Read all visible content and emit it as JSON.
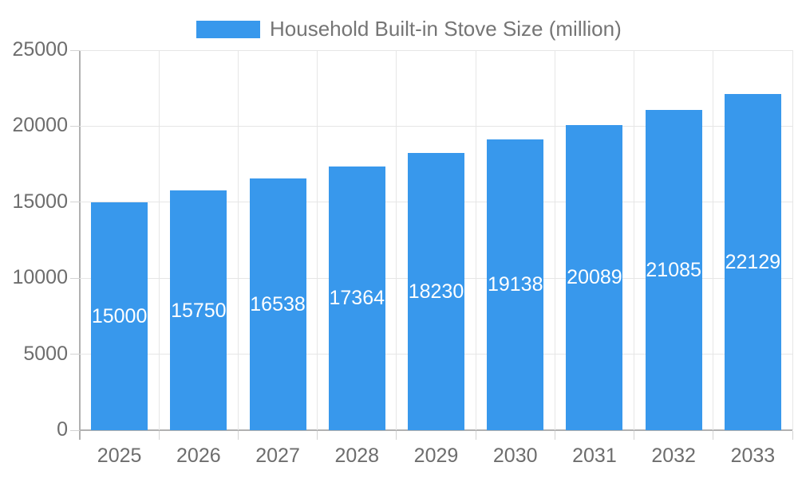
{
  "legend": {
    "label": "Household Built-in Stove Size (million)"
  },
  "colors": {
    "bar": "#3898EC",
    "bar_label_text": "#ffffff",
    "grid_line": "#e6e6e6",
    "axis_line": "#b1b1b1",
    "tick_mark": "#d3d3d3",
    "tick_label_text": "#6d6d6d",
    "legend_text": "#757575",
    "background": "#ffffff"
  },
  "chart_data": {
    "type": "bar",
    "title": "Household Built-in Stove Size (million)",
    "categories": [
      "2025",
      "2026",
      "2027",
      "2028",
      "2029",
      "2030",
      "2031",
      "2032",
      "2033"
    ],
    "series": [
      {
        "name": "Household Built-in Stove Size (million)",
        "values": [
          15000,
          15750,
          16538,
          17364,
          18230,
          19138,
          20089,
          21085,
          22129
        ]
      }
    ],
    "values": [
      15000,
      15750,
      16538,
      17364,
      18230,
      19138,
      20089,
      21085,
      22129
    ],
    "value_labels": [
      "15000",
      "15750",
      "16538",
      "17364",
      "18230",
      "19138",
      "20089",
      "21085",
      "22129"
    ],
    "xlabel": "",
    "ylabel": "",
    "ylim": [
      0,
      25000
    ],
    "yticks": [
      0,
      5000,
      10000,
      15000,
      20000,
      25000
    ],
    "ytick_labels": [
      "0",
      "5000",
      "10000",
      "15000",
      "20000",
      "25000"
    ],
    "grid": true,
    "legend_position": "top-center",
    "value_label_style": "inside-center-white"
  }
}
